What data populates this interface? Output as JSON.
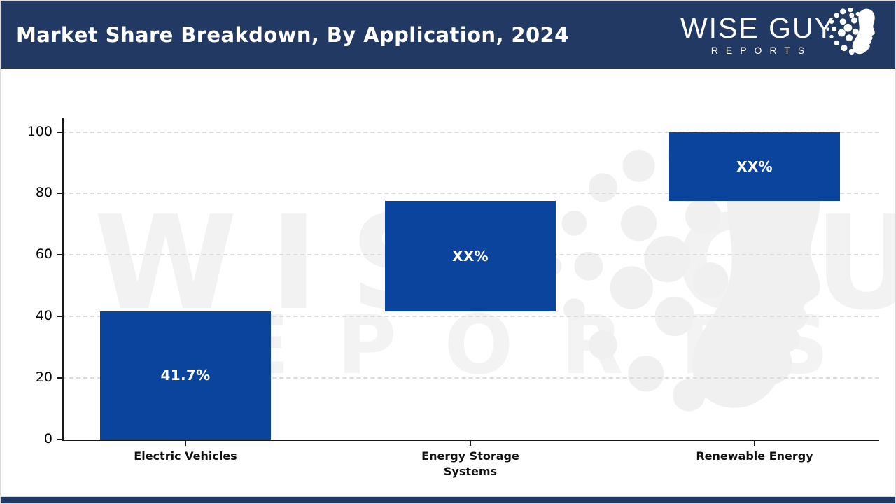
{
  "header": {
    "title": "Market Share Breakdown, By Application, 2024",
    "logo": {
      "line1": "WISE GUY",
      "line2": "REPORTS"
    }
  },
  "watermark": {
    "line1": "WISE GUY",
    "line2": "REPORTS"
  },
  "chart_data": {
    "type": "bar",
    "subtype": "waterfall-stacked",
    "title": "Market Share Breakdown, By Application, 2024",
    "categories": [
      "Electric Vehicles",
      "Energy Storage Systems",
      "Renewable Energy"
    ],
    "series": [
      {
        "name": "Electric Vehicles",
        "start": 0,
        "end": 41.7,
        "value": 41.7,
        "label": "41.7%"
      },
      {
        "name": "Energy Storage Systems",
        "start": 41.7,
        "end": 77.5,
        "value": 35.8,
        "label": "XX%"
      },
      {
        "name": "Renewable Energy",
        "start": 77.5,
        "end": 100,
        "value": 22.5,
        "label": "XX%"
      }
    ],
    "yticks": [
      0,
      20,
      40,
      60,
      80,
      100
    ],
    "ylim": [
      0,
      105
    ],
    "xlabel": "",
    "ylabel": "",
    "grid": "horizontal-dashed",
    "legend": "none",
    "bar_color": "#0b449c",
    "bar_label_color": "#ffffff"
  },
  "colors": {
    "navy": "#223963",
    "bar_blue": "#0b449c",
    "gridline": "#dcdcdc",
    "axis": "#1a1a1a",
    "watermark": "#f2f2f2",
    "figure_border": "#d9d9d9"
  }
}
